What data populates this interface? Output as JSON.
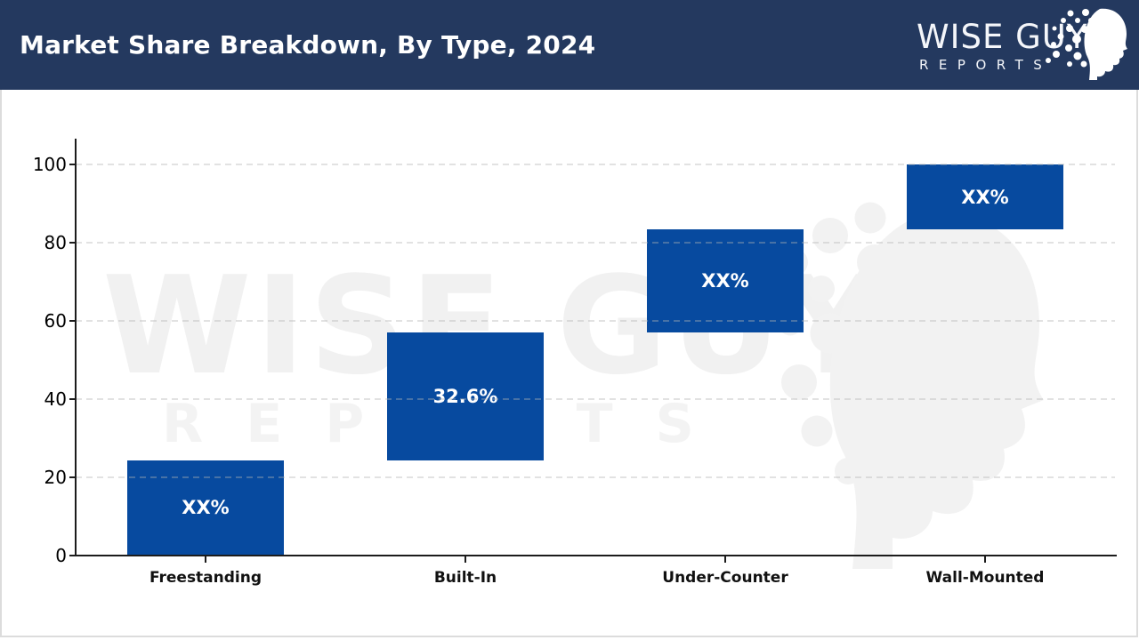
{
  "header": {
    "title": "Market Share Breakdown, By Type, 2024",
    "logo": {
      "line1": "WISE GUY",
      "line2": "REPORTS"
    }
  },
  "watermark": {
    "line1": "WISE GUY",
    "line2": "REPORTS"
  },
  "chart_data": {
    "type": "bar",
    "subtype": "waterfall",
    "title": "Market Share Breakdown, By Type, 2024",
    "categories": [
      "Freestanding",
      "Built-In",
      "Under-Counter",
      "Wall-Mounted"
    ],
    "segments": [
      {
        "category": "Freestanding",
        "start": 0,
        "end": 24.4,
        "label": "XX%"
      },
      {
        "category": "Built-In",
        "start": 24.4,
        "end": 57.0,
        "label": "32.6%"
      },
      {
        "category": "Under-Counter",
        "start": 57.0,
        "end": 83.3,
        "label": "XX%"
      },
      {
        "category": "Wall-Mounted",
        "start": 83.3,
        "end": 100,
        "label": "XX%"
      }
    ],
    "ylabel": "",
    "xlabel": "",
    "ylim": [
      0,
      106
    ],
    "yticks": [
      0,
      20,
      40,
      60,
      80,
      100
    ],
    "grid": "dashed horizontal, drawn over bars",
    "legend": "none"
  },
  "colors": {
    "header_bg": "#24395f",
    "bar": "#074a9f",
    "axis": "#1c1c1c",
    "grid_over_white": "#e8e8e8",
    "watermark": "#f1f1f1",
    "frame_border": "#dcdcdc",
    "title_text": "#ffffff",
    "bar_label_text": "#ffffff"
  }
}
